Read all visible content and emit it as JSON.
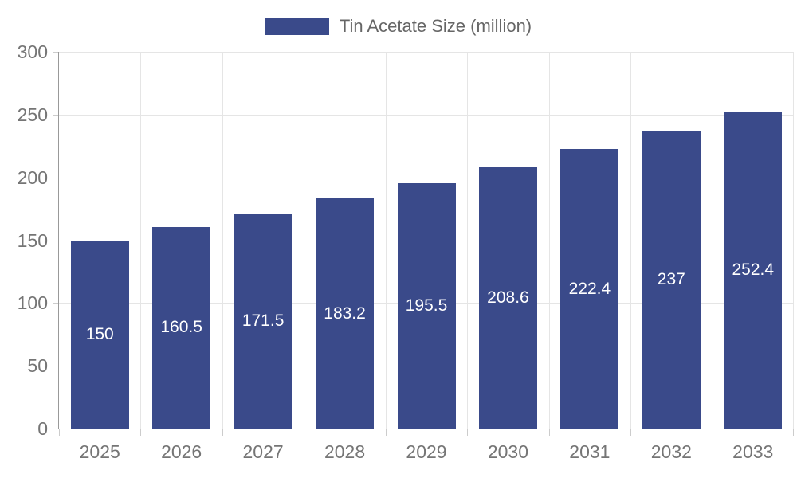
{
  "legend": {
    "items": [
      {
        "label": "Tin Acetate Size (million)",
        "color": "#3A4A8A"
      }
    ]
  },
  "chart_data": {
    "type": "bar",
    "title": "",
    "categories": [
      "2025",
      "2026",
      "2027",
      "2028",
      "2029",
      "2030",
      "2031",
      "2032",
      "2033"
    ],
    "series": [
      {
        "name": "Tin Acetate Size (million)",
        "values": [
          150,
          160.5,
          171.5,
          183.2,
          195.5,
          208.6,
          222.4,
          237,
          252.4
        ],
        "color": "#3A4A8A"
      }
    ],
    "value_labels": [
      "150",
      "160.5",
      "171.5",
      "183.2",
      "195.5",
      "208.6",
      "222.4",
      "237",
      "252.4"
    ],
    "value_label_position": "inside-center",
    "value_label_color": "#ffffff",
    "xlabel": "",
    "ylabel": "",
    "ylim": [
      0,
      300
    ],
    "yticks": [
      0,
      50,
      100,
      150,
      200,
      250,
      300
    ],
    "grid": true,
    "legend_position": "top"
  },
  "colors": {
    "background": "#ffffff",
    "axis_line": "#999999",
    "grid_line": "#e5e5e5",
    "tick_mark": "#cccccc",
    "axis_text": "#757575",
    "legend_text": "#666666",
    "bar": "#3A4A8A",
    "bar_label": "#ffffff"
  }
}
